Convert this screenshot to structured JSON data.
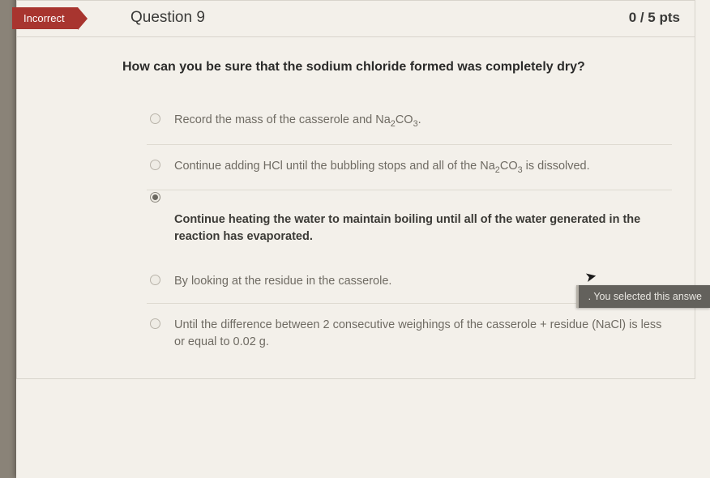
{
  "header": {
    "status_label": "Incorrect",
    "question_label": "Question 9",
    "points": "0 / 5 pts"
  },
  "prompt": "How can you be sure that the sodium chloride formed was completely dry?",
  "options": [
    {
      "html": "Record the mass of the casserole and Na<sub>2</sub>CO<sub>3</sub>.",
      "selected": false,
      "sep": false
    },
    {
      "html": "Continue adding HCl until the bubbling stops and all of the Na<sub>2</sub>CO<sub>3</sub> is dissolved.",
      "selected": false,
      "sep": true
    },
    {
      "html": "Continue heating the water to maintain boiling until all of the water generated in the reaction has evaporated.",
      "selected": true,
      "sep": true
    },
    {
      "html": "By looking at the residue in the casserole.",
      "selected": false,
      "sep": false
    },
    {
      "html": "Until the difference between 2 consecutive weighings of the casserole + residue (NaCl) is less or equal to 0.02 g.",
      "selected": false,
      "sep": true
    }
  ],
  "tooltip": ". You selected this answe",
  "colors": {
    "incorrect_bg": "#a8352f",
    "page_bg": "#f3f0ea",
    "outer_bg": "#8a8378",
    "border": "#d8d4cc",
    "muted_text": "#6f6b63",
    "text": "#2b2b2a",
    "tooltip_bg": "#63615c"
  }
}
